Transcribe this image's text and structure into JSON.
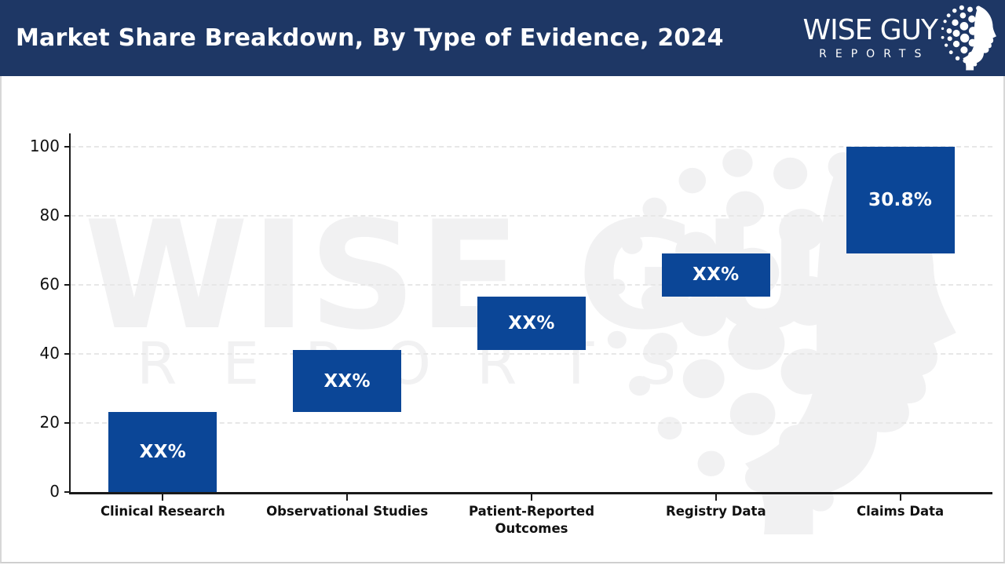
{
  "header": {
    "title": "Market Share Breakdown, By Type of Evidence, 2024",
    "bg_color": "#1e3765",
    "logo": {
      "wordmark": "WISE GUY",
      "subtitle": "REPORTS"
    }
  },
  "watermark": {
    "line1": "WISE GUY",
    "line2": "REPORTS"
  },
  "chart_data": {
    "type": "bar",
    "variant": "waterfall",
    "title": "Market Share Breakdown, By Type of Evidence, 2024",
    "categories": [
      "Clinical Research",
      "Observational Studies",
      "Patient-Reported Outcomes",
      "Registry Data",
      "Claims Data"
    ],
    "segments": [
      {
        "category": "Clinical Research",
        "start": 0,
        "end": 23.1,
        "value_label": "XX%"
      },
      {
        "category": "Observational Studies",
        "start": 23.1,
        "end": 41.1,
        "value_label": "XX%"
      },
      {
        "category": "Patient-Reported Outcomes",
        "start": 41.1,
        "end": 56.7,
        "value_label": "XX%"
      },
      {
        "category": "Registry Data",
        "start": 56.7,
        "end": 69.2,
        "value_label": "XX%"
      },
      {
        "category": "Claims Data",
        "start": 69.2,
        "end": 100,
        "value_label": "30.8%"
      }
    ],
    "yticks": [
      0,
      20,
      40,
      60,
      80,
      100
    ],
    "ylim": [
      0,
      104
    ],
    "xlabel": "",
    "ylabel": "",
    "bar_color": "#0b4697",
    "axis_color": "#1a1a1a",
    "grid": {
      "horizontal": true,
      "style": "dashed",
      "color": "#e7e7e7"
    },
    "legend": "none"
  }
}
